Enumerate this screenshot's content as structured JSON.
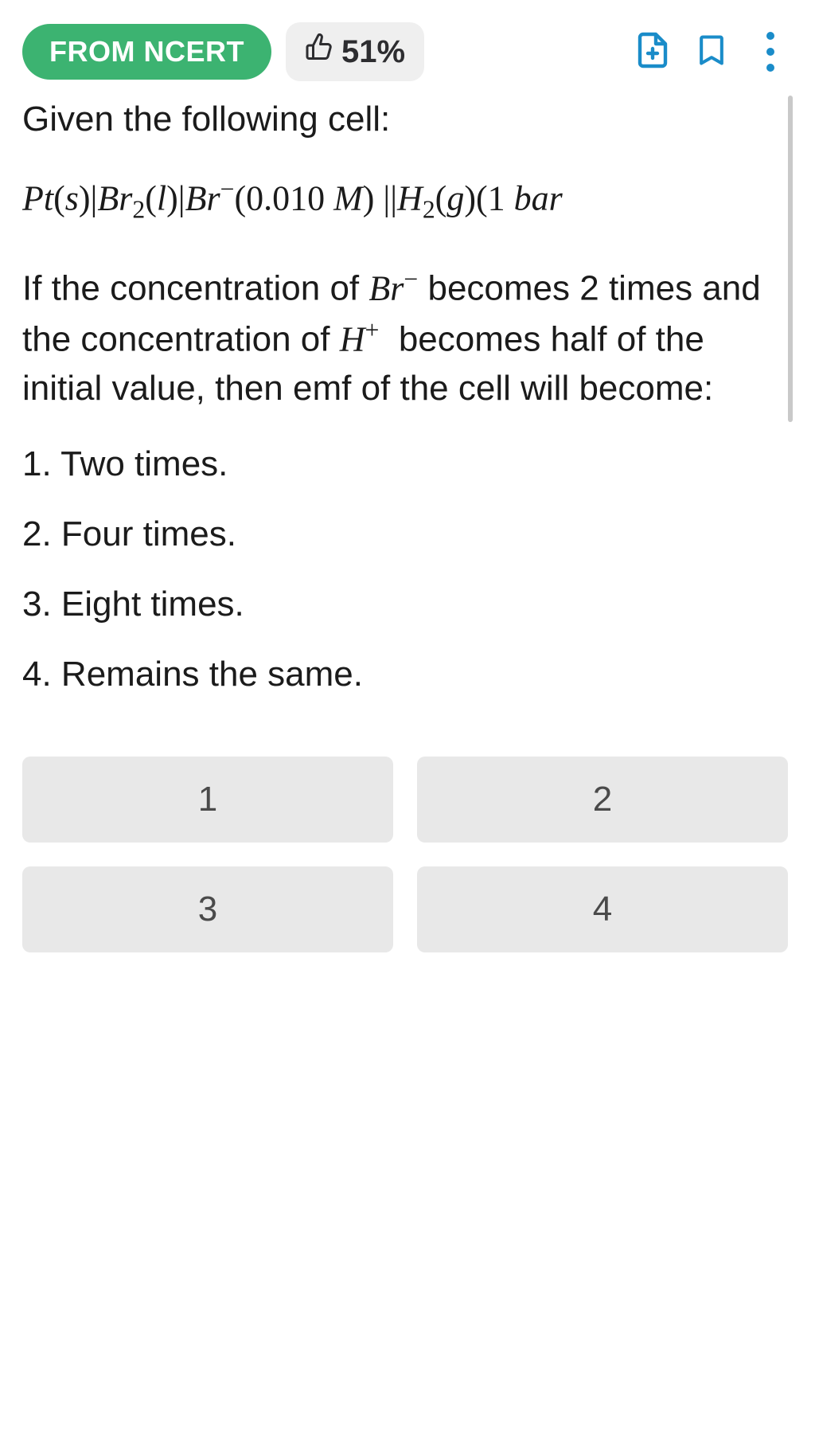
{
  "colors": {
    "ncert_bg": "#3cb371",
    "ncert_text": "#ffffff",
    "pct_bg": "#efefef",
    "pct_text": "#2d2d30",
    "icon_stroke": "#1a8cc9",
    "dots": "#1a8cc9",
    "scroll_ind": "#c9c9c9",
    "text": "#1b1b1b",
    "answer_bg": "#e8e8e8",
    "answer_text": "#4a4a4a"
  },
  "header": {
    "ncert_label": "FROM NCERT",
    "like_percent": "51%"
  },
  "question": {
    "intro": "Given the following cell:",
    "cell_notation_html": "<i>Pt</i>(<i>s</i>)|<i>Br</i><span class=\"sub\">2</span>(<i>l</i>)|<i>Br</i><span class=\"sup\">−</span>(0.010&nbsp;<i>M</i>)&nbsp;||<i>H</i><span class=\"sub\">2</span>(<i>g</i>)(1&nbsp;<i>bar</i>",
    "body_html": "If the concentration of <span class=\"mathI\">Br</span><span class=\"supm\">−</span> becomes 2 times and the concentration of <span class=\"mathI\">H</span><span class=\"supm\">+</span> &nbsp;becomes half of the initial value, then emf of the cell will become:",
    "options": [
      "1. Two times.",
      "2. Four times.",
      "3. Eight times.",
      "4. Remains the same."
    ]
  },
  "answers": [
    "1",
    "2",
    "3",
    "4"
  ]
}
